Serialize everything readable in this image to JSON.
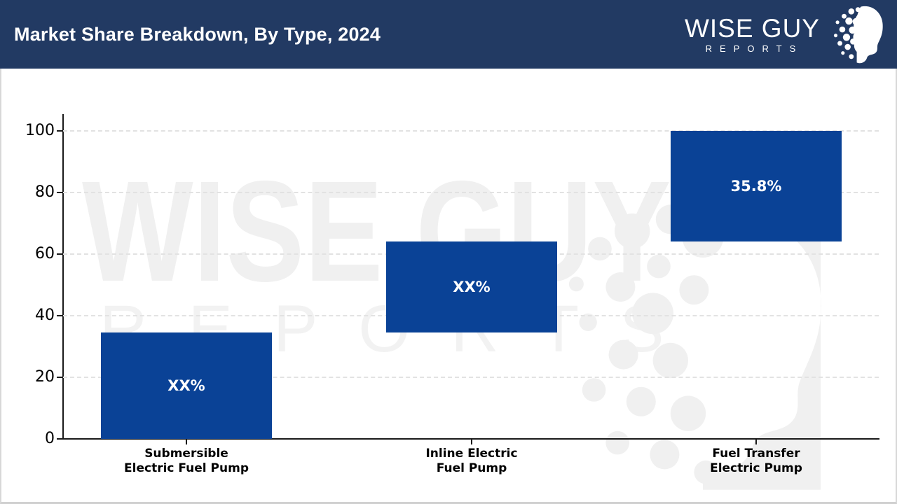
{
  "header": {
    "title": "Market Share Breakdown, By Type, 2024",
    "logo": {
      "name_line": "WISE GUY",
      "sub_line": "REPORTS"
    }
  },
  "watermark": {
    "name_line": "WISE GUY",
    "sub_line": "REPORTS"
  },
  "chart_data": {
    "type": "bar",
    "variant": "floating-waterfall-segments",
    "title": "Market Share Breakdown, By Type, 2024",
    "categories": [
      [
        "Submersible",
        "Electric Fuel Pump"
      ],
      [
        "Inline Electric",
        "Fuel Pump"
      ],
      [
        "Fuel Transfer",
        "Electric Pump"
      ]
    ],
    "segments": [
      {
        "category": "Submersible Electric Fuel Pump",
        "start": 0,
        "end": 34.5,
        "label": "XX%"
      },
      {
        "category": "Inline Electric Fuel Pump",
        "start": 34.5,
        "end": 64.2,
        "label": "XX%"
      },
      {
        "category": "Fuel Transfer Electric Pump",
        "start": 64.2,
        "end": 100,
        "label": "35.8%"
      }
    ],
    "yticks": [
      0,
      20,
      40,
      60,
      80,
      100
    ],
    "ylim": [
      0,
      105
    ],
    "xlabel": "",
    "ylabel": "",
    "grid": true,
    "legend": "none",
    "bar_color": "#0a4296"
  },
  "colors": {
    "header_bg": "#223a63",
    "bar": "#0a4296",
    "grid": "#e2e2e2",
    "axis": "#1a1a1a",
    "watermark": "#f0f0f0",
    "border": "#d8d8d8"
  }
}
